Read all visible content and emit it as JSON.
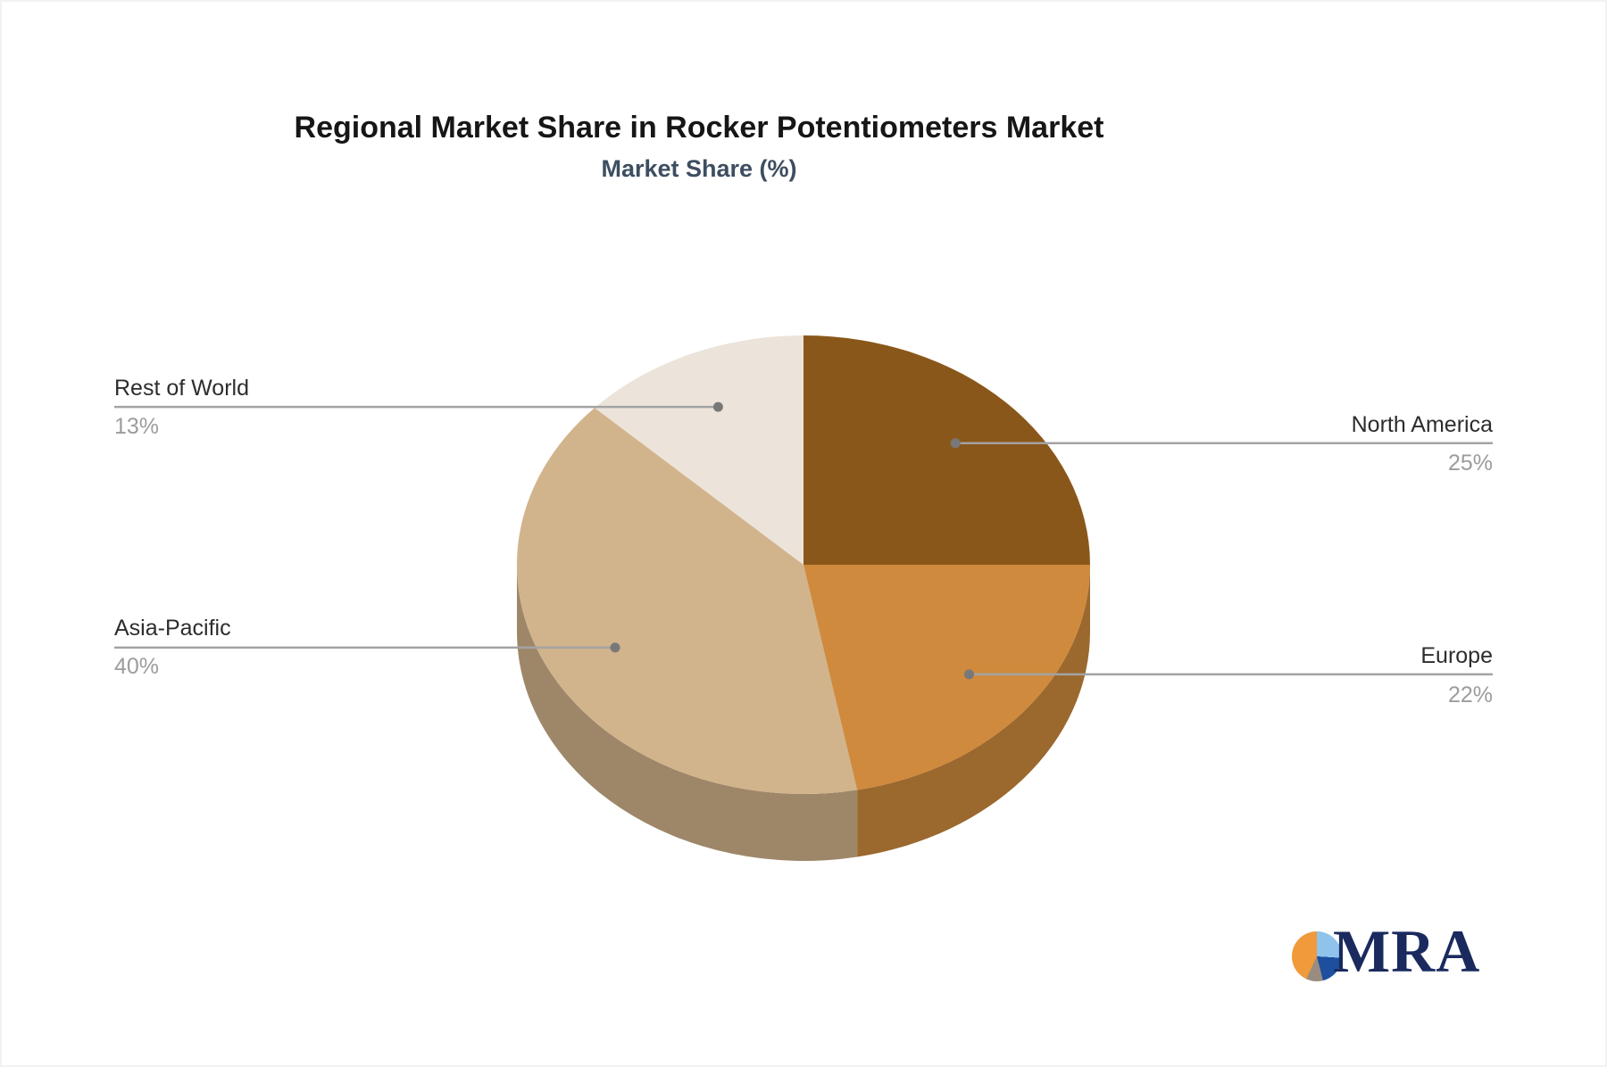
{
  "chart_data": {
    "type": "pie",
    "style": "3d",
    "title": "Regional Market Share in Rocker Potentiometers Market",
    "subtitle": "Market Share (%)",
    "unit": "%",
    "start_angle": "12 o'clock",
    "direction": "clockwise",
    "legend_position": "none (leader-line labels)",
    "slices": [
      {
        "label": "North America",
        "value": 25,
        "pct": "25%",
        "color": "#8a571a"
      },
      {
        "label": "Europe",
        "value": 22,
        "pct": "22%",
        "color": "#cf8a3d"
      },
      {
        "label": "Asia-Pacific",
        "value": 40,
        "pct": "40%",
        "color": "#d2b48c"
      },
      {
        "label": "Rest of World",
        "value": 13,
        "pct": "13%",
        "color": "#ece4da"
      }
    ],
    "label_name_color": "#2d2d2d",
    "label_pct_color": "#9c9c9c",
    "leader_line_color": "#a3a3a3",
    "leader_dot_color": "#787878"
  },
  "logo": {
    "text": "MRA",
    "text_color": "#1a2a5e",
    "icon_colors": {
      "light_blue": "#8fc3ec",
      "dark_blue": "#1d4f9e",
      "gray": "#9a8d80",
      "orange": "#f09a3c"
    }
  }
}
